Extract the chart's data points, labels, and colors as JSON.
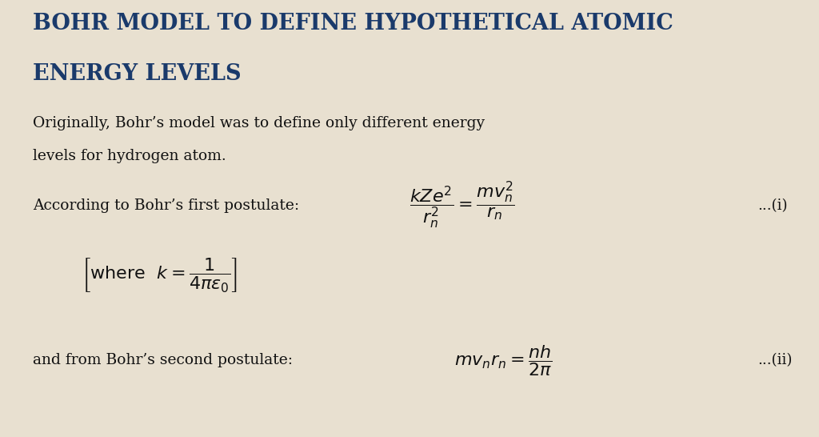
{
  "title_line1": "BOHR MODEL TO DEFINE HYPOTHETICAL ATOMIC",
  "title_line2": "ENERGY LEVELS",
  "bg_color": "#e8e0d0",
  "title_color": "#1a3a6b",
  "text_color": "#111111",
  "body_text1": "Originally, Bohr’s model was to define only different energy",
  "body_text2": "levels for hydrogen atom.",
  "label1": "According to Bohr’s first postulate:",
  "tag1": "...(i)",
  "label2": "and from Bohr’s second postulate:",
  "tag2": "...(ii)"
}
